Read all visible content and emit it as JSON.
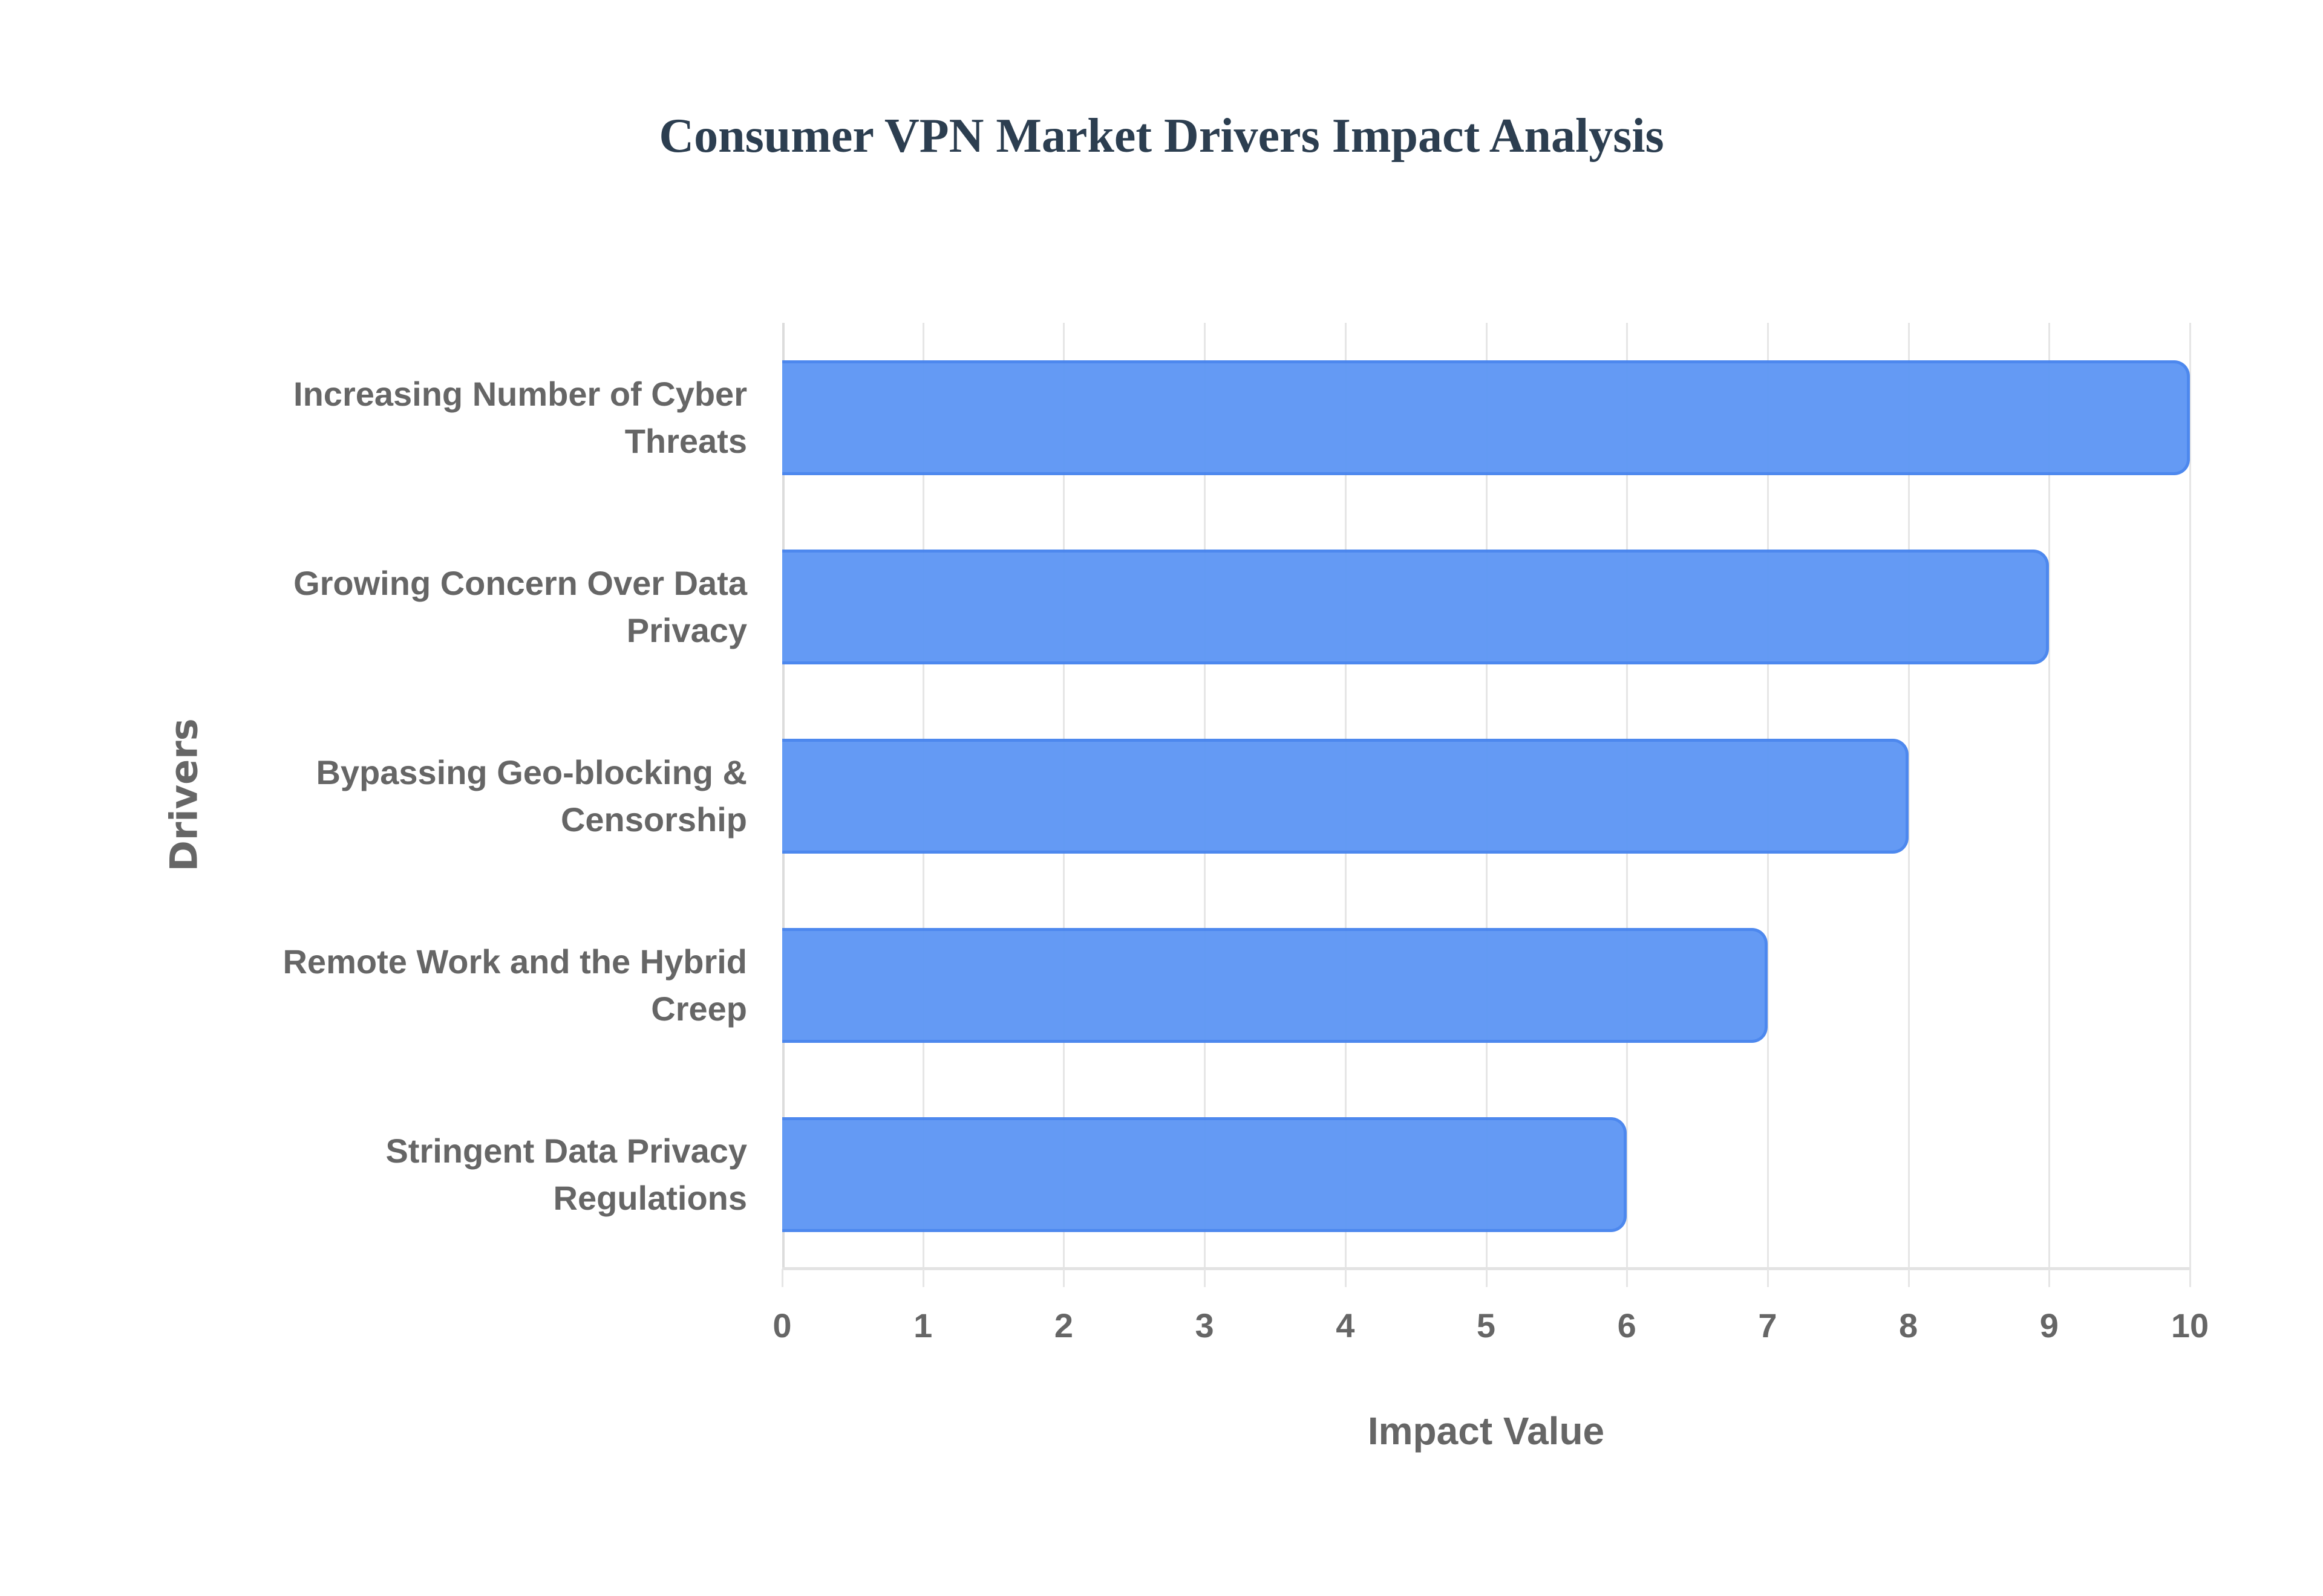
{
  "chart_data": {
    "type": "bar",
    "orientation": "horizontal",
    "title": "Consumer VPN Market Drivers Impact Analysis",
    "xlabel": "Impact Value",
    "ylabel": "Drivers",
    "categories": [
      "Increasing Number of Cyber Threats",
      "Growing Concern Over Data Privacy",
      "Bypassing Geo-blocking & Censorship",
      "Remote Work and the Hybrid Creep",
      "Stringent Data Privacy Regulations"
    ],
    "values": [
      10,
      9,
      8,
      7,
      6
    ],
    "xlim": [
      0,
      10
    ],
    "xticks": [
      0,
      1,
      2,
      3,
      4,
      5,
      6,
      7,
      8,
      9,
      10
    ],
    "grid": true,
    "legend": null,
    "colors": {
      "bar_fill": "#6199f4",
      "bar_border": "#4a86ee",
      "title": "#2c3e50",
      "text": "#666666",
      "grid": "#e6e6e6"
    }
  },
  "labels": {
    "title": "Consumer VPN Market Drivers Impact Analysis",
    "x_title": "Impact Value",
    "y_title": "Drivers",
    "categories": [
      [
        "Increasing Number of Cyber",
        "Threats"
      ],
      [
        "Growing Concern Over Data",
        "Privacy"
      ],
      [
        "Bypassing Geo-blocking &",
        "Censorship"
      ],
      [
        "Remote Work and the Hybrid",
        "Creep"
      ],
      [
        "Stringent Data Privacy",
        "Regulations"
      ]
    ],
    "xticks": [
      "0",
      "1",
      "2",
      "3",
      "4",
      "5",
      "6",
      "7",
      "8",
      "9",
      "10"
    ]
  }
}
